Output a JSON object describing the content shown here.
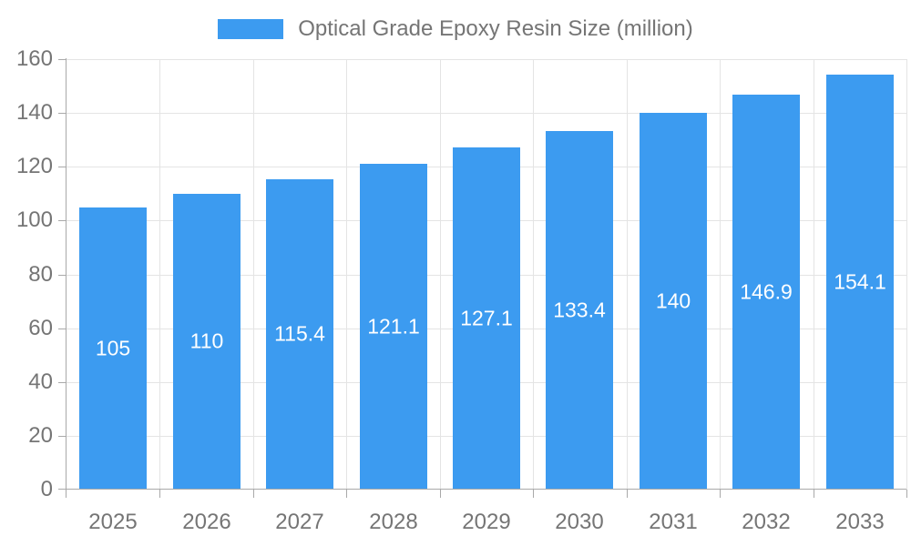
{
  "chart_data": {
    "type": "bar",
    "title": "",
    "xlabel": "",
    "ylabel": "",
    "categories": [
      "2025",
      "2026",
      "2027",
      "2028",
      "2029",
      "2030",
      "2031",
      "2032",
      "2033"
    ],
    "series": [
      {
        "name": "Optical Grade Epoxy Resin Size (million)",
        "values": [
          105,
          110,
          115.4,
          121.1,
          127.1,
          133.4,
          140,
          146.9,
          154.1
        ]
      }
    ],
    "value_labels": [
      "105",
      "110",
      "115.4",
      "121.1",
      "127.1",
      "133.4",
      "140",
      "146.9",
      "154.1"
    ],
    "ylim": [
      0,
      160
    ],
    "ytick_step": 20,
    "ytick_labels": [
      "0",
      "20",
      "40",
      "60",
      "80",
      "100",
      "120",
      "140",
      "160"
    ],
    "grid": true,
    "legend_position": "top-center",
    "colors": {
      "bar": "#3C9BF0",
      "value_label": "#FFFFFF",
      "grid_line": "#E4E4E4",
      "axis_line": "#A9A9A9",
      "text": "#757575"
    }
  }
}
